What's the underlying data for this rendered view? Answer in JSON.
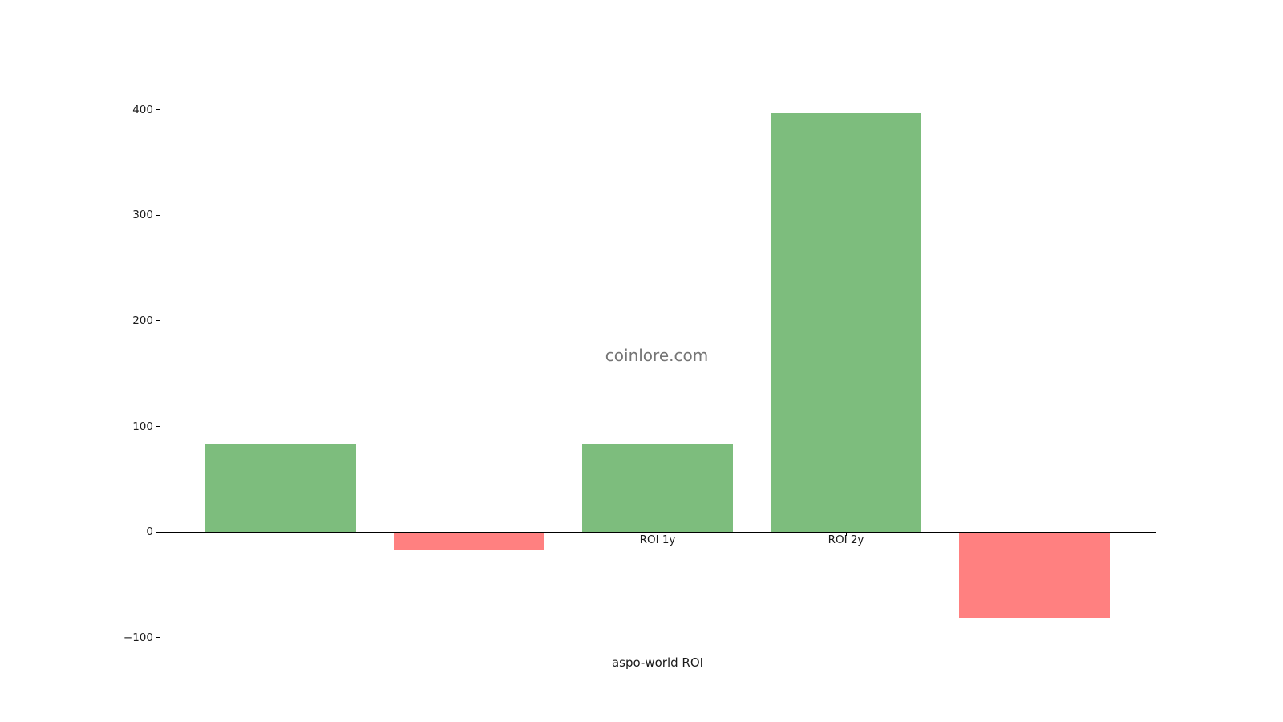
{
  "watermark": "coinlore.com",
  "xlabel": "aspo-world ROI",
  "chart_data": {
    "type": "bar",
    "title": "",
    "xlabel": "aspo-world ROI",
    "ylabel": "",
    "categories": [
      "",
      "",
      "ROI 1y",
      "ROI 2y",
      ""
    ],
    "values": [
      83,
      -17,
      83,
      397,
      -81
    ],
    "yticks": [
      400,
      300,
      200,
      100,
      0,
      -100
    ],
    "ylim": [
      -105,
      424
    ],
    "grid": false,
    "legend": null,
    "bar_colors": {
      "positive": "#7dbd7d",
      "negative": "#ff8080"
    },
    "axis_color": "#000000",
    "tick_label_color": "#1a1a1a",
    "watermark_text": "coinlore.com",
    "watermark_color": "#757575"
  }
}
